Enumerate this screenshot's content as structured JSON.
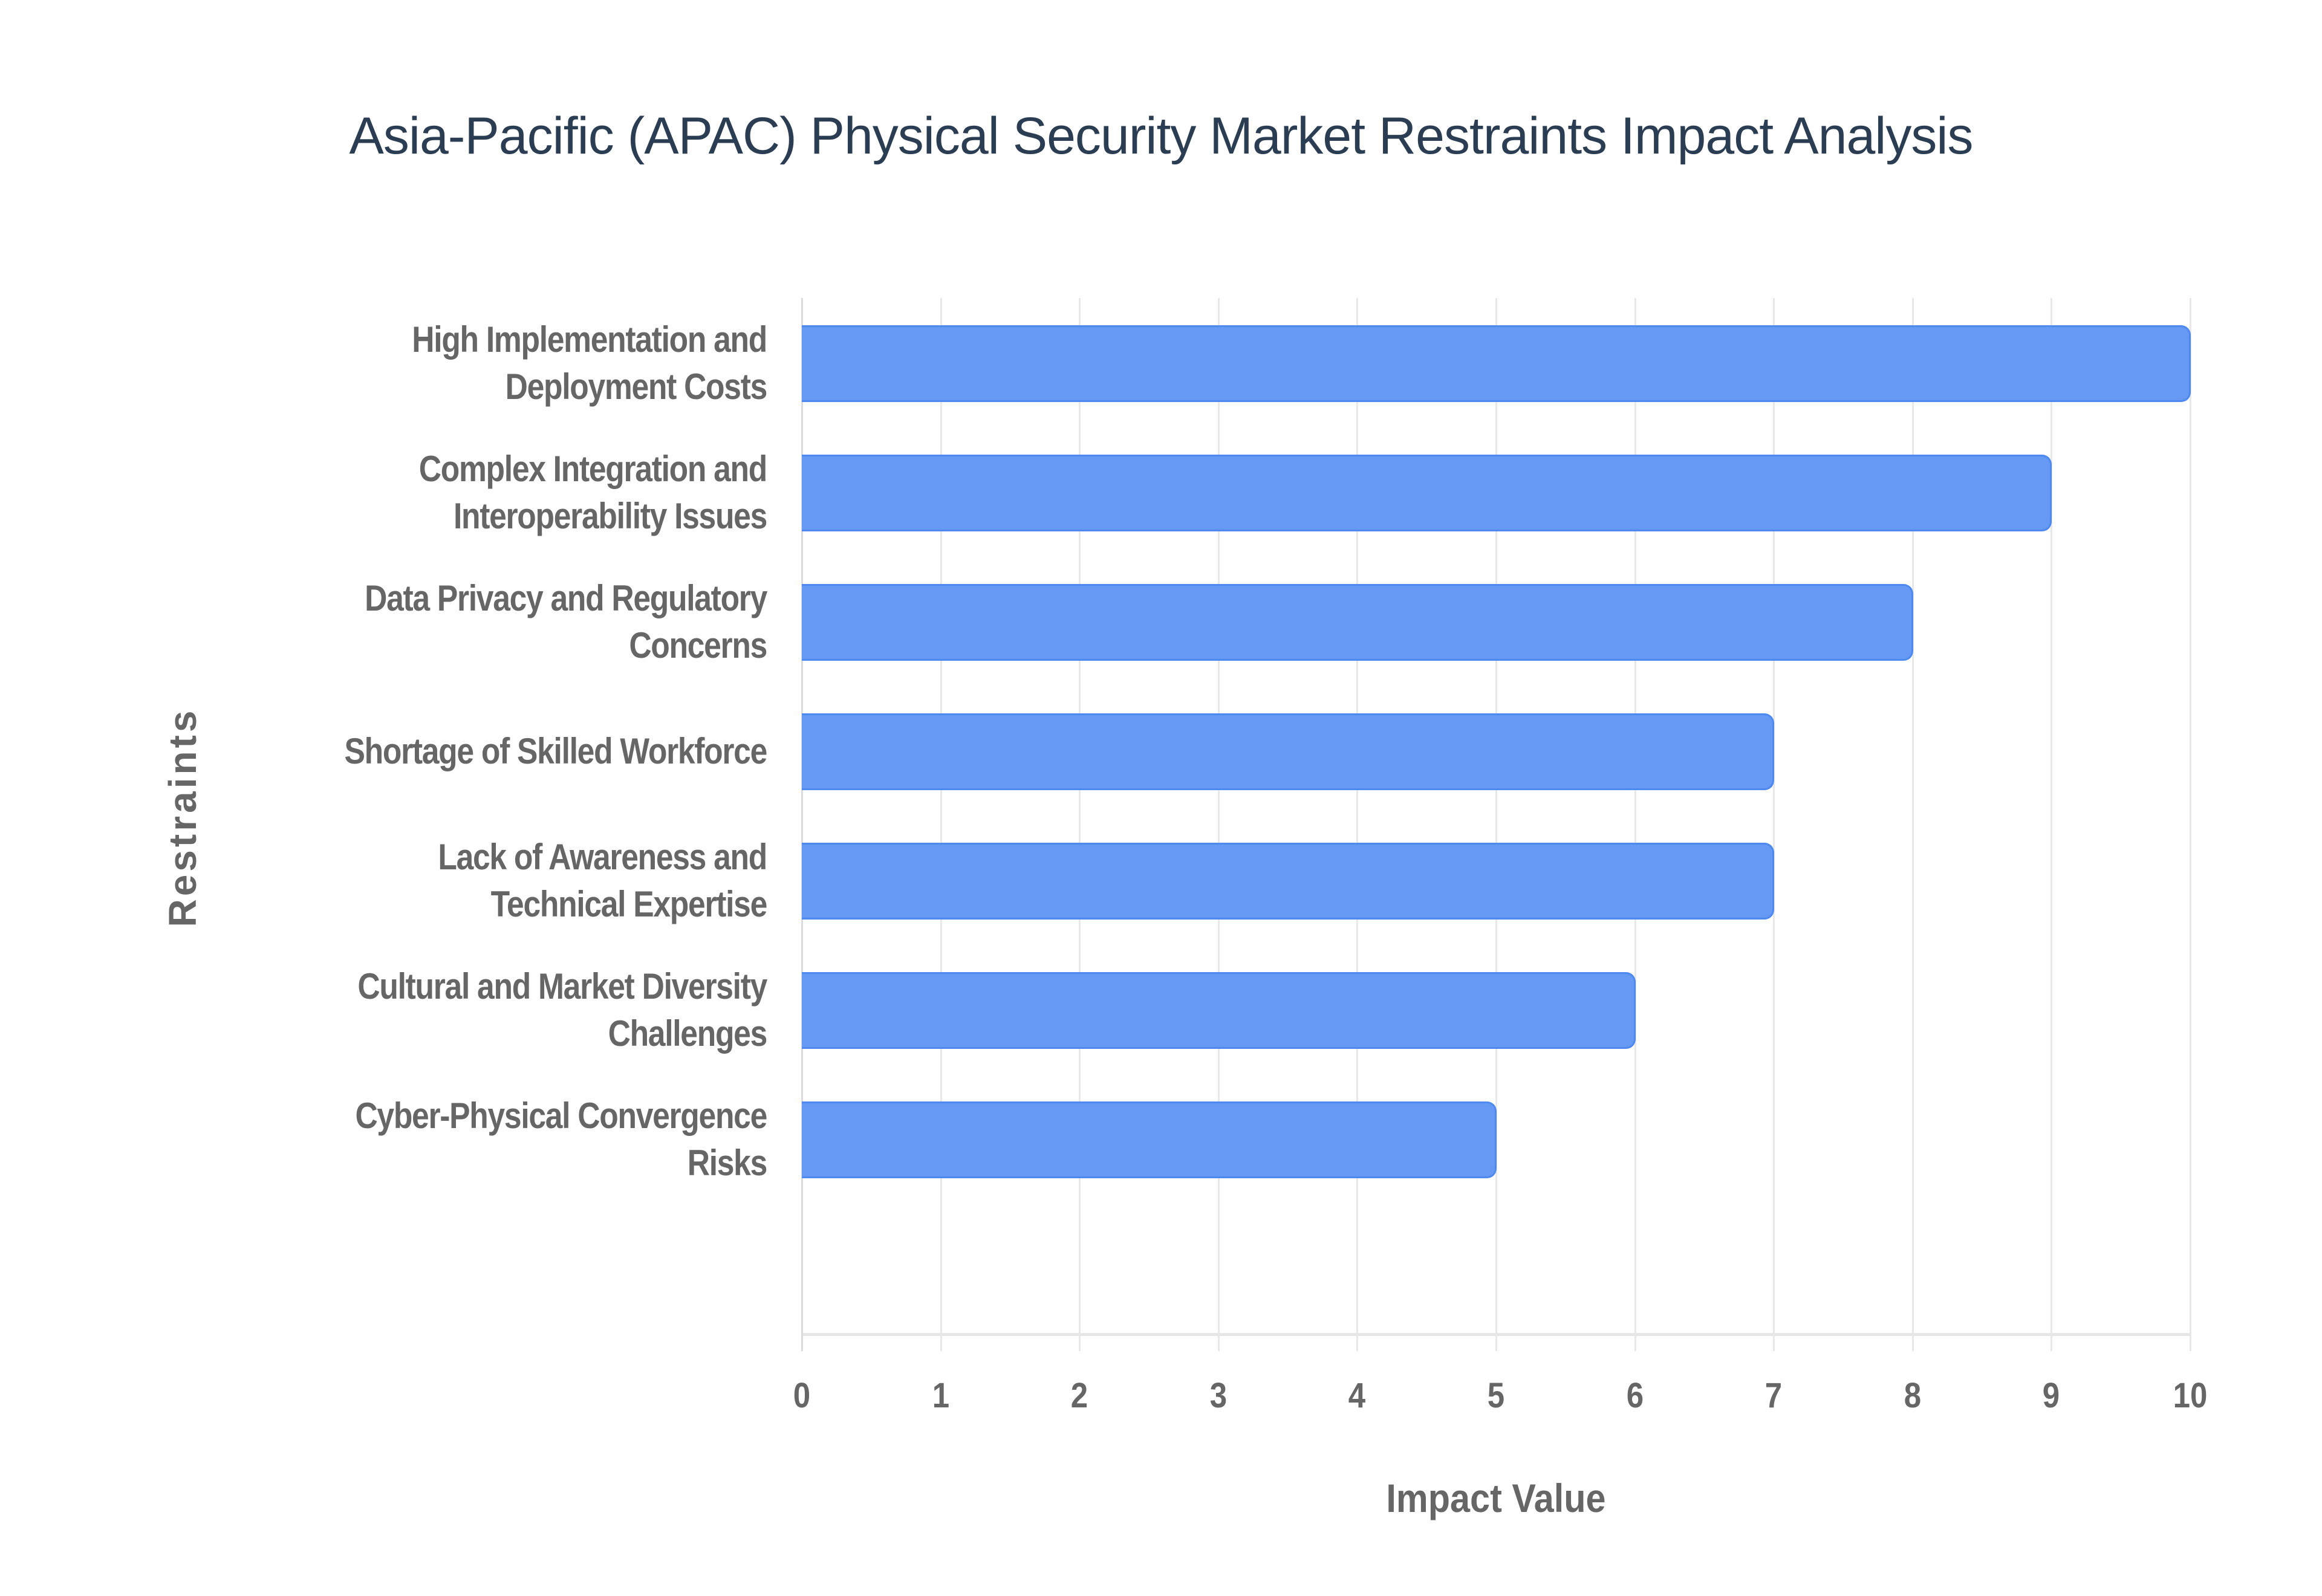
{
  "title": "Asia-Pacific (APAC) Physical Security Market Restraints Impact Analysis",
  "colors": {
    "bar_fill": "#6699f4",
    "bar_border": "#4d89ef",
    "title": "#2b3d52",
    "axis_text": "#666666",
    "grid": "#e8e8e8"
  },
  "axes": {
    "x_title": "Impact Value",
    "y_title": "Restraints",
    "x_ticks": [
      "0",
      "1",
      "2",
      "3",
      "4",
      "5",
      "6",
      "7",
      "8",
      "9",
      "10"
    ]
  },
  "bars": [
    {
      "lines": [
        "High Implementation and",
        "Deployment Costs"
      ],
      "value": 10
    },
    {
      "lines": [
        "Complex Integration and",
        "Interoperability Issues"
      ],
      "value": 9
    },
    {
      "lines": [
        "Data Privacy and Regulatory",
        "Concerns"
      ],
      "value": 8
    },
    {
      "lines": [
        "Shortage of Skilled Workforce"
      ],
      "value": 7
    },
    {
      "lines": [
        "Lack of Awareness and",
        "Technical Expertise"
      ],
      "value": 7
    },
    {
      "lines": [
        "Cultural and Market Diversity",
        "Challenges"
      ],
      "value": 6
    },
    {
      "lines": [
        "Cyber-Physical Convergence",
        "Risks"
      ],
      "value": 5
    }
  ],
  "chart_data": {
    "type": "bar",
    "orientation": "horizontal",
    "title": "Asia-Pacific (APAC) Physical Security Market Restraints Impact Analysis",
    "xlabel": "Impact Value",
    "ylabel": "Restraints",
    "categories": [
      "High Implementation and Deployment Costs",
      "Complex Integration and Interoperability Issues",
      "Data Privacy and Regulatory Concerns",
      "Shortage of Skilled Workforce",
      "Lack of Awareness and Technical Expertise",
      "Cultural and Market Diversity Challenges",
      "Cyber-Physical Convergence Risks"
    ],
    "values": [
      10,
      9,
      8,
      7,
      7,
      6,
      5
    ],
    "xlim": [
      0,
      10
    ],
    "x_ticks": [
      0,
      1,
      2,
      3,
      4,
      5,
      6,
      7,
      8,
      9,
      10
    ],
    "grid": {
      "vertical": true,
      "horizontal": false
    },
    "legend": null
  }
}
